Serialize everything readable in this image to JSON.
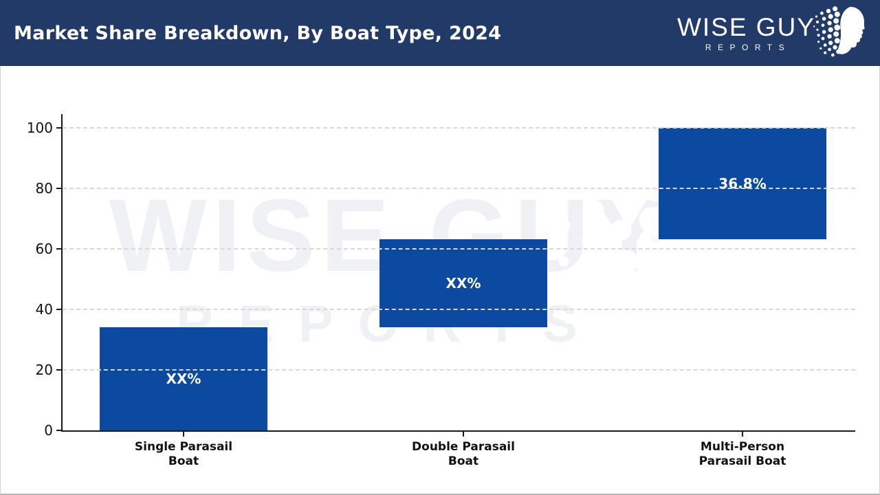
{
  "header": {
    "title": "Market Share Breakdown, By Boat Type, 2024",
    "logo": {
      "line1": "WISE GUY",
      "line2": "REPORTS"
    }
  },
  "watermark": {
    "line1": "WISE GUY",
    "line2": "REPORTS"
  },
  "colors": {
    "header_bg": "#213a68",
    "bar_blue": "#0b4aa0",
    "grid_gray": "#d9d9d9",
    "axis_black": "#1a1a1a",
    "watermark_gray": "#f0f1f4",
    "bar_label_white": "#ffffff"
  },
  "chart_data": {
    "type": "bar",
    "subtype": "floating-waterfall-segments",
    "title": "Market Share Breakdown, By Boat Type, 2024",
    "categories": [
      [
        "Single Parasail",
        "Boat"
      ],
      [
        "Double Parasail",
        "Boat"
      ],
      [
        "Multi-Person",
        "Parasail Boat"
      ]
    ],
    "segments": [
      {
        "category": "Single Parasail Boat",
        "label": "XX%",
        "start": 0,
        "end": 34
      },
      {
        "category": "Double Parasail Boat",
        "label": "XX%",
        "start": 34,
        "end": 63.2
      },
      {
        "category": "Multi-Person Parasail Boat",
        "label": "36.8%",
        "start": 63.2,
        "end": 100
      }
    ],
    "yticks": [
      0,
      20,
      40,
      60,
      80,
      100
    ],
    "ylim": [
      0,
      104.5
    ],
    "xlabel": "",
    "ylabel": "",
    "grid": "dashed-horizontal-over-bars",
    "legend": "none",
    "bar_color": "#0b4aa0",
    "bar_label_color": "#ffffff"
  }
}
